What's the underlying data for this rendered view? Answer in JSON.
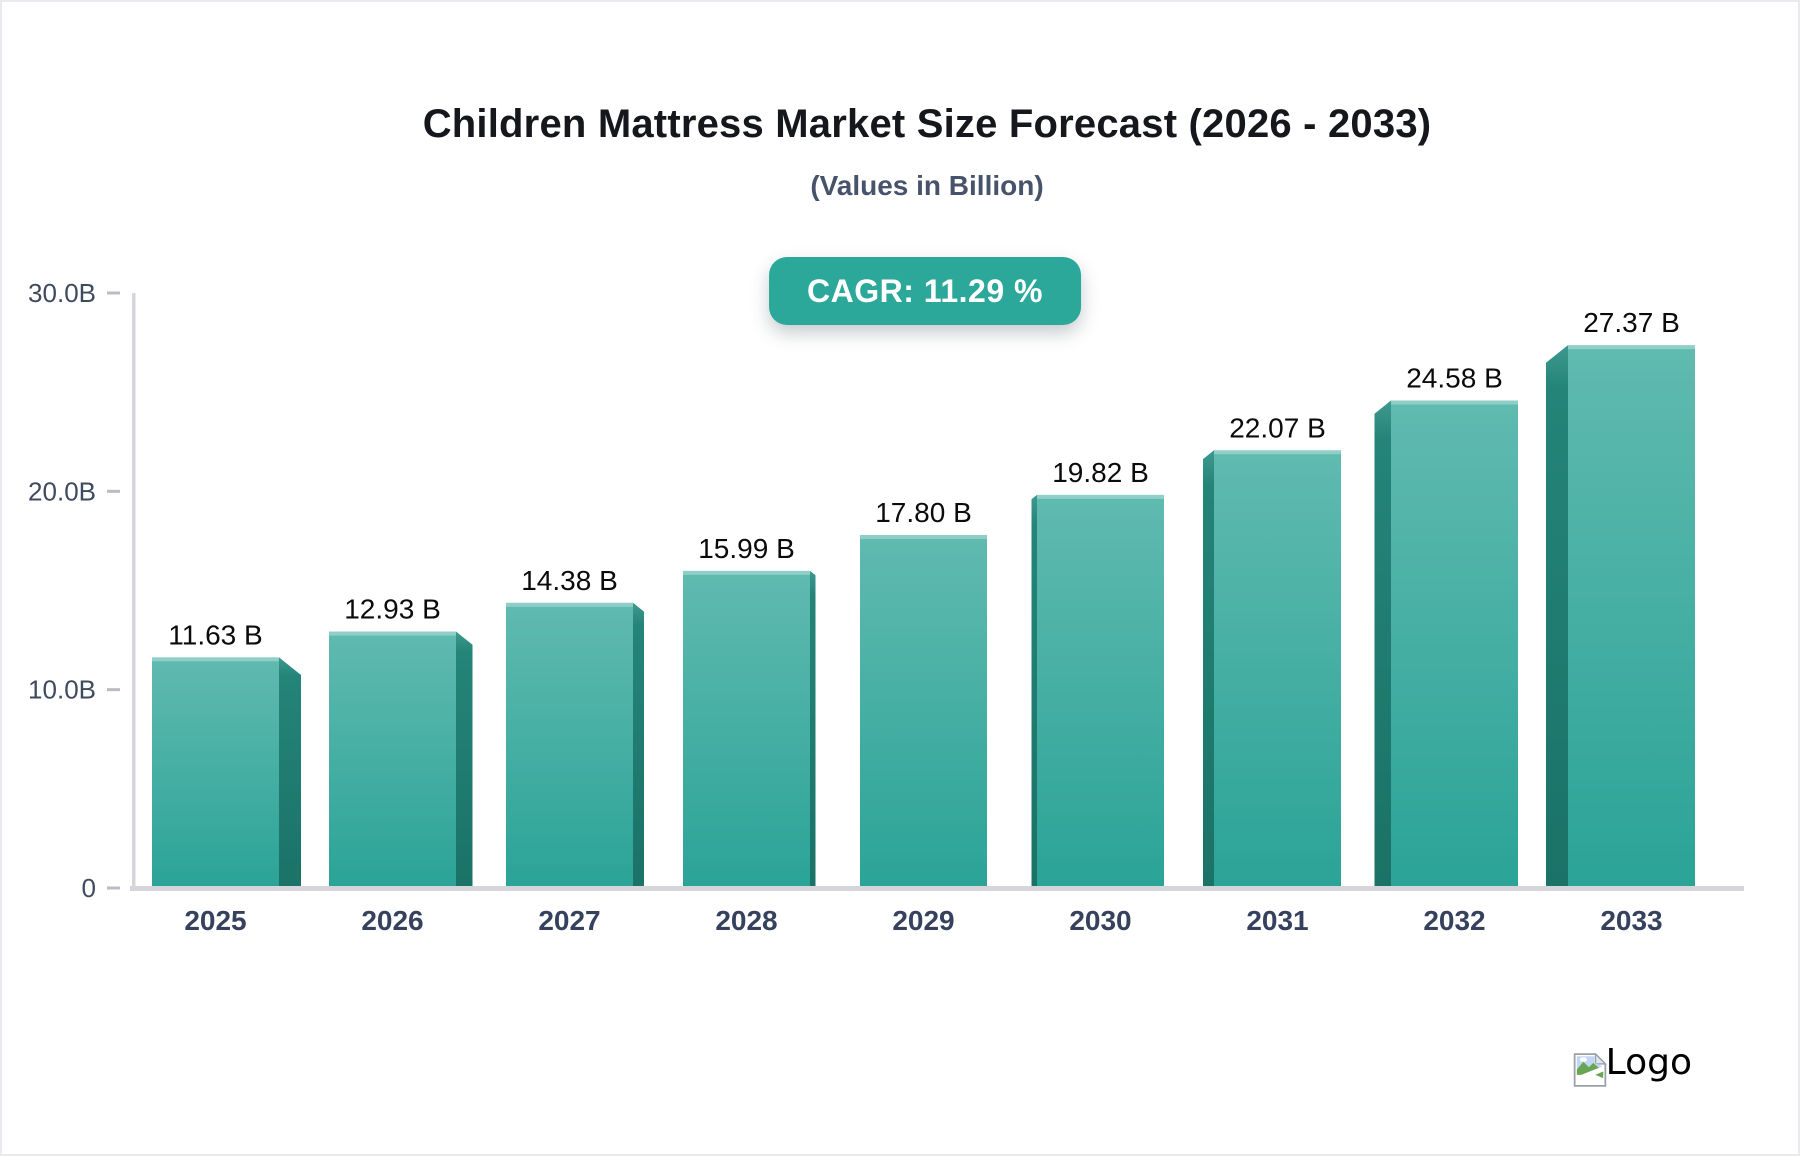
{
  "chart_data": {
    "type": "bar",
    "title": "Children Mattress Market Size Forecast (2026 - 2033)",
    "subtitle": "(Values in Billion)",
    "annotation": "CAGR: 11.29 %",
    "categories": [
      "2025",
      "2026",
      "2027",
      "2028",
      "2029",
      "2030",
      "2031",
      "2032",
      "2033"
    ],
    "values": [
      11.63,
      12.93,
      14.38,
      15.99,
      17.8,
      19.82,
      22.07,
      24.58,
      27.37
    ],
    "value_labels": [
      "11.63 B",
      "12.93 B",
      "14.38 B",
      "15.99 B",
      "17.80 B",
      "19.82 B",
      "22.07 B",
      "24.58 B",
      "27.37 B"
    ],
    "yticks": [
      {
        "label": "30.0B",
        "value": 30
      },
      {
        "label": "20.0B",
        "value": 20
      },
      {
        "label": "10.0B",
        "value": 10
      },
      {
        "label": "0",
        "value": 0
      }
    ],
    "ylim": [
      0,
      30
    ],
    "grid": false,
    "legend": false,
    "bar_style": "3d-perspective"
  },
  "colors": {
    "bar_face_top": "#60bab0",
    "bar_face_bottom": "#2ba397",
    "bar_side_bevel": "#3d998d",
    "bar_side_top": "#248478",
    "bar_side_bottom": "#1b7267",
    "bar_top_highlight": "rgba(255,255,255,0.3)",
    "badge_bg": "#2ba89a",
    "badge_text": "#ffffff",
    "axis_line": "#d5d6dc",
    "tick_mark": "#b9bcc4",
    "y_label": "#3e4a5e",
    "x_label": "#36425d",
    "value_label": "#0b0b0b"
  },
  "footer": {
    "logo_alt": "Logo"
  }
}
